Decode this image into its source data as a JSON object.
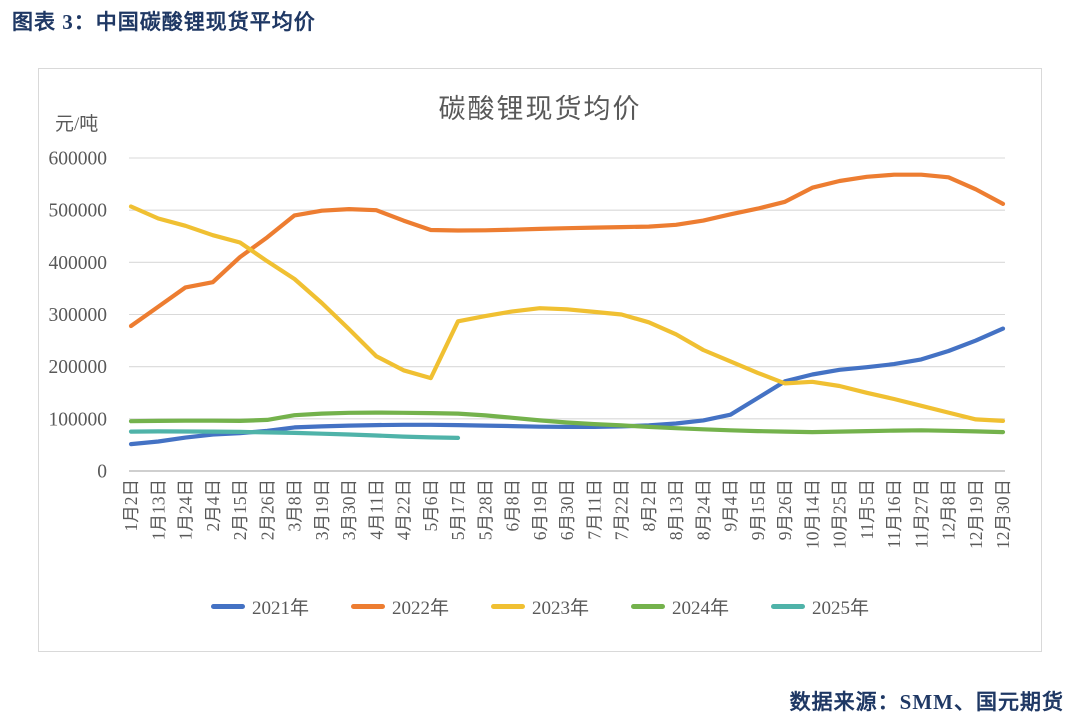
{
  "page": {
    "heading": "图表 3：中国碳酸锂现货平均价",
    "source": "数据来源：SMM、国元期货"
  },
  "colors": {
    "heading_navy": "#1F3864",
    "axis_text_gray": "#595959",
    "gridline": "#D9D9D9",
    "axis_line": "#BFBFBF",
    "frame_border": "#D9D9D9"
  },
  "chart_data": {
    "type": "line",
    "title": "碳酸锂现货均价",
    "y_unit": "元/吨",
    "xlabel": "",
    "ylabel": "元/吨",
    "ylim": [
      0,
      600000
    ],
    "y_ticks": [
      600000,
      500000,
      400000,
      300000,
      200000,
      100000,
      0
    ],
    "grid": true,
    "legend_position": "bottom",
    "categories": [
      "1月2日",
      "1月13日",
      "1月24日",
      "2月4日",
      "2月15日",
      "2月26日",
      "3月8日",
      "3月19日",
      "3月30日",
      "4月11日",
      "4月22日",
      "5月6日",
      "5月17日",
      "5月28日",
      "6月8日",
      "6月19日",
      "6月30日",
      "7月11日",
      "7月22日",
      "8月2日",
      "8月13日",
      "8月24日",
      "9月4日",
      "9月15日",
      "9月26日",
      "10月14日",
      "10月25日",
      "11月5日",
      "11月16日",
      "11月27日",
      "12月8日",
      "12月19日",
      "12月30日"
    ],
    "series": [
      {
        "name": "2021年",
        "color": "#4472C4",
        "values": [
          51500,
          56500,
          64000,
          70000,
          72500,
          77000,
          83500,
          85500,
          87000,
          88000,
          88500,
          88500,
          88000,
          87000,
          86000,
          85000,
          84500,
          84500,
          85500,
          87500,
          91000,
          97000,
          108000,
          140000,
          172000,
          185000,
          194000,
          199000,
          205000,
          214000,
          230000,
          250000,
          273000
        ]
      },
      {
        "name": "2022年",
        "color": "#ED7D31",
        "values": [
          278000,
          315000,
          352000,
          362000,
          410000,
          448000,
          490000,
          499000,
          502000,
          500000,
          480000,
          462000,
          461000,
          461500,
          462500,
          464000,
          465500,
          466500,
          467500,
          468500,
          472000,
          480000,
          492000,
          503000,
          516000,
          543000,
          556000,
          564000,
          568000,
          568000,
          563000,
          540000,
          512000
        ]
      },
      {
        "name": "2023年",
        "color": "#F0C032",
        "values": [
          507000,
          484000,
          470000,
          452000,
          438000,
          402000,
          368000,
          322000,
          272000,
          220000,
          193000,
          178000,
          287000,
          297000,
          306000,
          312000,
          310000,
          305000,
          300000,
          285000,
          262000,
          232000,
          210000,
          188000,
          168000,
          171000,
          163000,
          150000,
          138000,
          125000,
          112000,
          99000,
          96000
        ]
      },
      {
        "name": "2024年",
        "color": "#74B24C",
        "values": [
          95500,
          96000,
          96500,
          96500,
          96000,
          98000,
          107000,
          110000,
          111500,
          112000,
          111500,
          111000,
          110000,
          106500,
          102000,
          97000,
          93000,
          90000,
          87500,
          84500,
          82000,
          80000,
          78000,
          76500,
          75500,
          74500,
          75500,
          76500,
          77500,
          78000,
          77000,
          76000,
          74500
        ]
      },
      {
        "name": "2025年",
        "color": "#4FB3A9",
        "values": [
          75500,
          76000,
          75800,
          75500,
          75000,
          74000,
          73000,
          71500,
          70000,
          68000,
          66000,
          64500,
          63500
        ]
      }
    ]
  }
}
